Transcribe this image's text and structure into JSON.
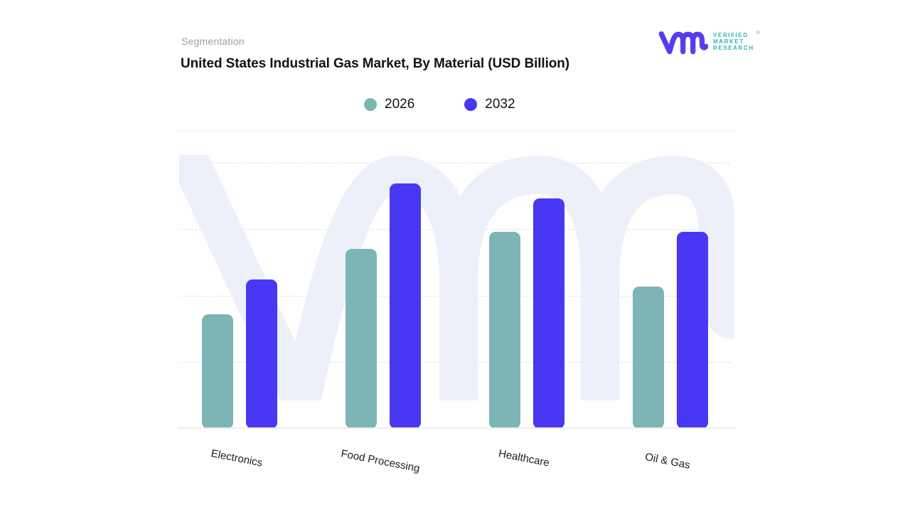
{
  "header": {
    "eyebrow": "Segmentation",
    "title": "United States Industrial Gas Market, By Material (USD Billion)"
  },
  "logo": {
    "line1": "VERIFIED",
    "line2": "MARKET",
    "line3": "RESEARCH",
    "registered": "®",
    "mark_color": "#5a3bee",
    "text_color": "#2fb4b1"
  },
  "legend": [
    {
      "label": "2026",
      "color": "#7db4b4"
    },
    {
      "label": "2032",
      "color": "#4837f3"
    }
  ],
  "watermark": {
    "name": "vmr-logo-watermark",
    "color": "#edeff9"
  },
  "chart_data": {
    "type": "bar",
    "title": "United States Industrial Gas Market, By Material (USD Billion)",
    "categories": [
      "Electronics",
      "Food Processing",
      "Healthcare",
      "Oil & Gas"
    ],
    "series": [
      {
        "name": "2026",
        "color": "#7db4b4",
        "values": [
          1.73,
          2.71,
          2.97,
          2.14
        ]
      },
      {
        "name": "2032",
        "color": "#4837f3",
        "values": [
          2.25,
          3.7,
          3.47,
          2.97
        ]
      }
    ],
    "xlabel": "",
    "ylabel": "",
    "ylim": [
      0,
      4
    ],
    "y_axis_labels_visible": false,
    "values_note": "Y axis is unlabeled in the image; values are estimated in gridline units (1 unit = spacing between dashed gridlines, baseline = 0).",
    "grid": "4 horizontal dashed gridlines plus solid baseline",
    "legend_position": "top-center",
    "x_tick_rotation_deg": 11
  }
}
